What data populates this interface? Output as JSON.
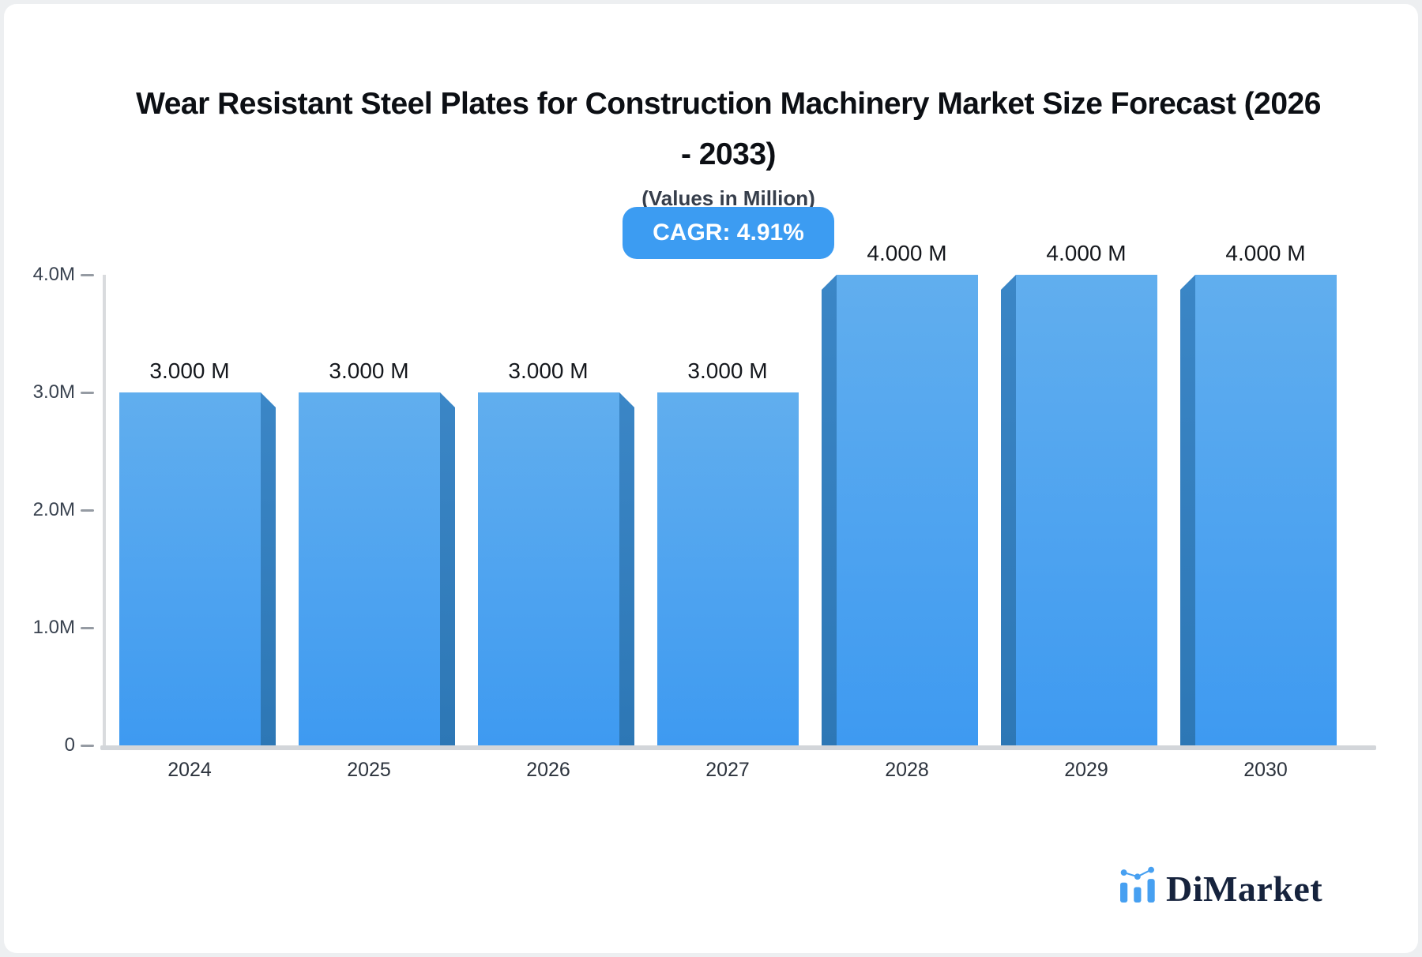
{
  "header": {
    "title_line1": "Wear Resistant Steel Plates for Construction Machinery Market Size Forecast (2026",
    "title_line2": "- 2033)",
    "subtitle": "(Values in Million)",
    "cagr_badge": "CAGR: 4.91%"
  },
  "chart_data": {
    "type": "bar",
    "title": "Wear Resistant Steel Plates for Construction Machinery Market Size Forecast (2026 - 2033)",
    "subtitle": "(Values in Million)",
    "cagr_percent": 4.91,
    "categories": [
      "2024",
      "2025",
      "2026",
      "2027",
      "2028",
      "2029",
      "2030"
    ],
    "values": [
      3.0,
      3.0,
      3.0,
      3.0,
      4.0,
      4.0,
      4.0
    ],
    "bar_labels": [
      "3.000 M",
      "3.000 M",
      "3.000 M",
      "3.000 M",
      "4.000 M",
      "4.000 M",
      "4.000 M"
    ],
    "unit": "M",
    "y_axis": {
      "min": 0,
      "max": 4.0,
      "ticks": [
        {
          "label": "4.0M",
          "value": 4.0
        },
        {
          "label": "3.0M",
          "value": 3.0
        },
        {
          "label": "2.0M",
          "value": 2.0
        },
        {
          "label": "1.0M",
          "value": 1.0
        },
        {
          "label": "0",
          "value": 0
        }
      ]
    },
    "grid": "off",
    "legend": "none",
    "style_3d": true,
    "colors": {
      "accent": "#3c9cf2",
      "bar_top": "#61aeee",
      "bar_bottom": "#3e9af1",
      "bar_side_top": "#3b86c6",
      "bar_side_bottom": "#2d77b5"
    }
  },
  "branding": {
    "brand": "DiMarket",
    "logo_icon": "mini-bar-chart-icon",
    "brand_color": "#16233d",
    "logo_blue": "#47a0f1"
  }
}
